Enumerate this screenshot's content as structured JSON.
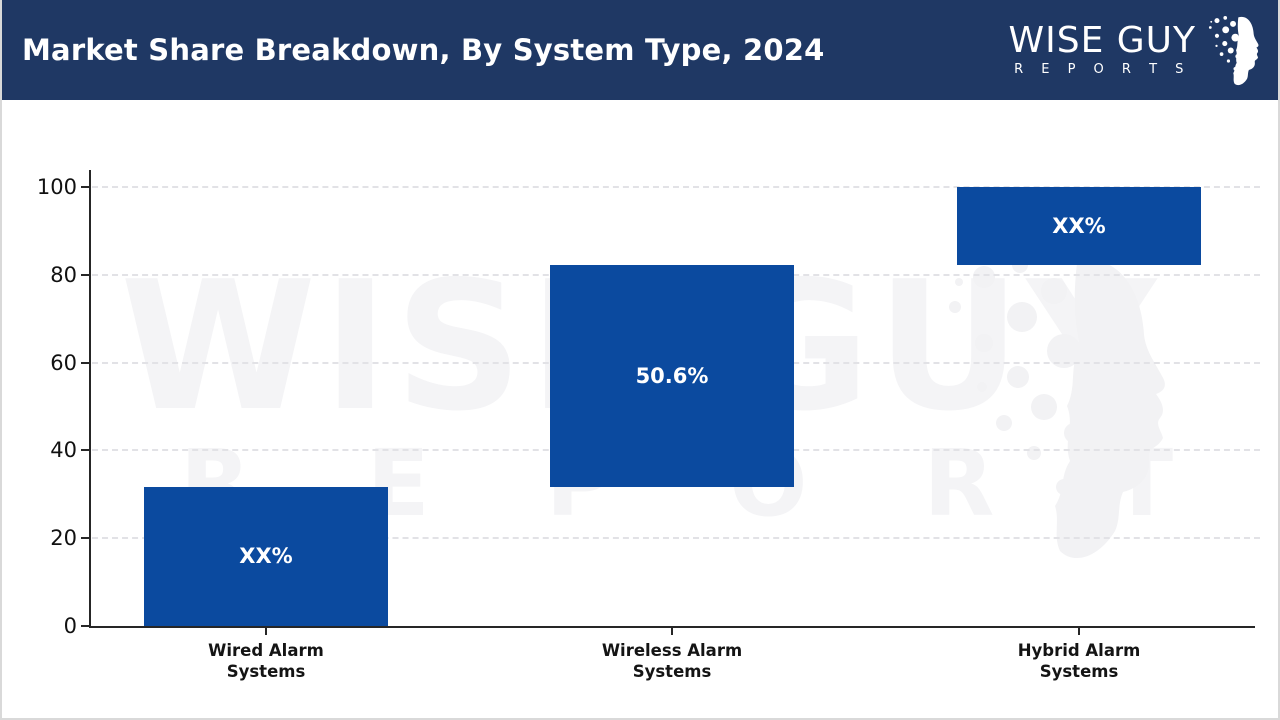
{
  "header": {
    "title": "Market Share Breakdown, By System Type, 2024",
    "bg_color": "#1f3864",
    "logo": {
      "line1": "WISE GUY",
      "line2": "R E P O R T S"
    }
  },
  "watermark": {
    "line1": "WISE GUY",
    "line2": "R E P O R T S"
  },
  "colors": {
    "bar": "#0b4a9f",
    "header_bg": "#1f3864",
    "axis": "#262626",
    "grid": "#e2e2e6",
    "watermark": "#f4f4f6"
  },
  "chart_data": {
    "type": "bar",
    "subtype": "waterfall",
    "title": "Market Share Breakdown, By System Type, 2024",
    "xlabel": "",
    "ylabel": "",
    "categories": [
      "Wired Alarm Systems",
      "Wireless Alarm Systems",
      "Hybrid Alarm Systems"
    ],
    "category_lines": [
      [
        "Wired Alarm",
        "Systems"
      ],
      [
        "Wireless Alarm",
        "Systems"
      ],
      [
        "Hybrid Alarm",
        "Systems"
      ]
    ],
    "series": [
      {
        "name": "Wired Alarm Systems",
        "start": 0,
        "end": 31.7,
        "value_label": "XX%"
      },
      {
        "name": "Wireless Alarm Systems",
        "start": 31.7,
        "end": 82.3,
        "value_label": "50.6%"
      },
      {
        "name": "Hybrid Alarm Systems",
        "start": 82.3,
        "end": 100,
        "value_label": "XX%"
      }
    ],
    "yticks": [
      0,
      20,
      40,
      60,
      80,
      100
    ],
    "ylim": [
      0,
      104
    ],
    "grid": "horizontal-dashed",
    "legend": "none",
    "bar_color": "#0b4a9f"
  }
}
